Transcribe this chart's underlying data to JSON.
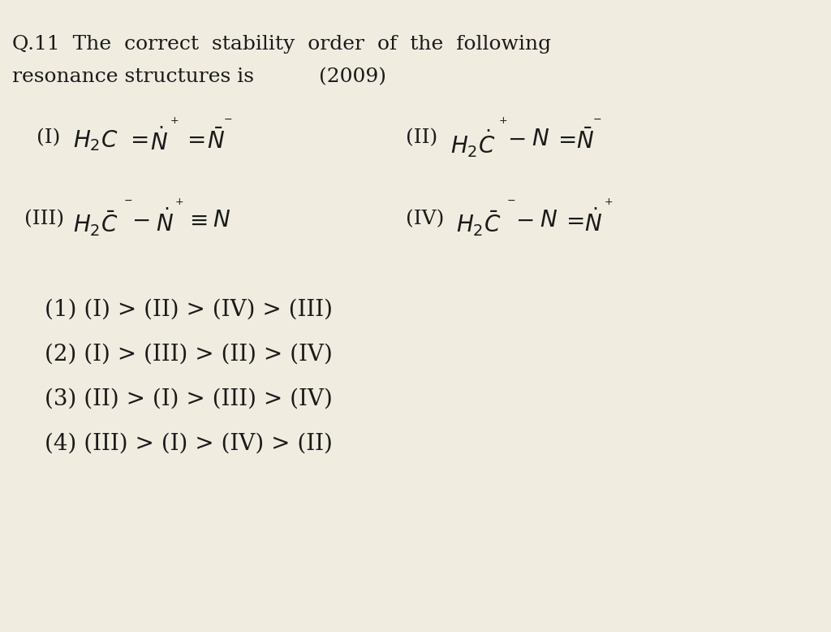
{
  "bg_color": "#f0ece0",
  "text_color": "#1a1a1a",
  "title_line1": "Q.11  The  correct  stability  order  of  the  following",
  "title_line2": "resonance structures is          (2009)",
  "options": [
    "(1) (I) > (II) > (IV) > (III)",
    "(2) (I) > (III) > (II) > (IV)",
    "(3) (II) > (I) > (III) > (IV)",
    "(4) (III) > (I) > (IV) > (II)"
  ],
  "figsize": [
    10.24,
    7.78
  ],
  "dpi": 100
}
